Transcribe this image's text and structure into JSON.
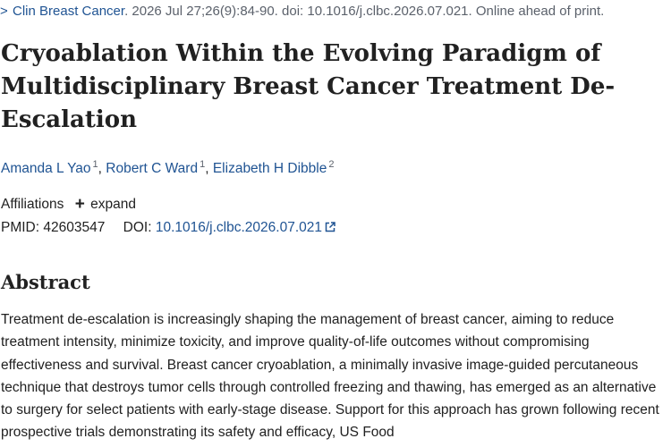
{
  "citation": {
    "chevron": ">",
    "journal": "Clin Breast Cancer",
    "details": ". 2026 Jul 27;26(9):84-90. doi: 10.1016/j.clbc.2026.07.021. Online ahead of print."
  },
  "article": {
    "title": "Cryoablation Within the Evolving Paradigm of Multidisciplinary Breast Cancer Treatment De-Escalation"
  },
  "authors": [
    {
      "name": "Amanda L Yao",
      "affiliation": "1"
    },
    {
      "name": "Robert C Ward",
      "affiliation": "1"
    },
    {
      "name": "Elizabeth H Dibble",
      "affiliation": "2"
    }
  ],
  "affiliations": {
    "label": "Affiliations",
    "expand_label": "expand"
  },
  "identifiers": {
    "pmid_label": "PMID:",
    "pmid": "42603547",
    "doi_label": "DOI:",
    "doi": "10.1016/j.clbc.2026.07.021"
  },
  "abstract": {
    "heading": "Abstract",
    "text": "Treatment de-escalation is increasingly shaping the management of breast cancer, aiming to reduce treatment intensity, minimize toxicity, and improve quality-of-life outcomes without compromising effectiveness and survival. Breast cancer cryoablation, a minimally invasive image-guided percutaneous technique that destroys tumor cells through controlled freezing and thawing, has emerged as an alternative to surgery for select patients with early-stage disease. Support for this approach has grown following recent prospective trials demonstrating its safety and efficacy, US Food"
  },
  "colors": {
    "link": "#205493",
    "text": "#212121",
    "muted": "#5b616b"
  }
}
